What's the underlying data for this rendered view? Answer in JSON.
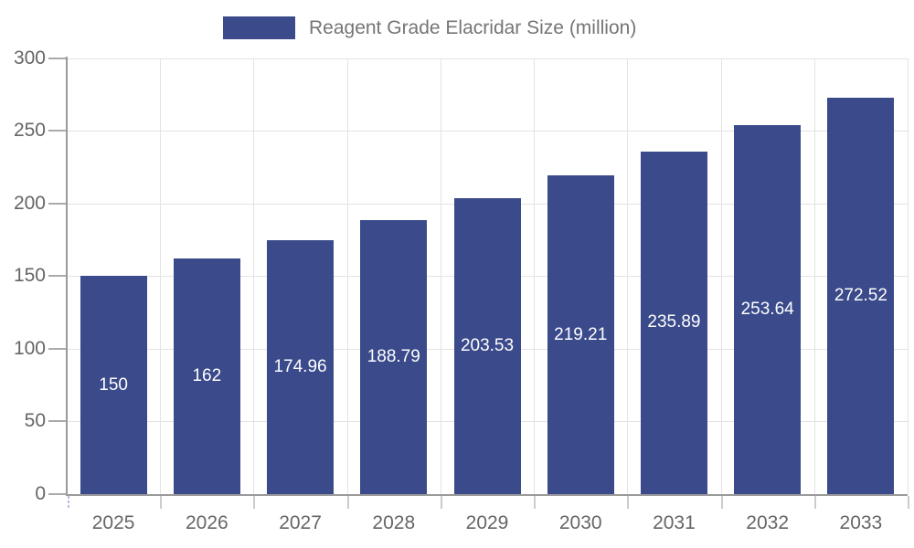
{
  "chart_data": {
    "type": "bar",
    "title": "Reagent Grade Elacridar Size (million)",
    "categories": [
      "2025",
      "2026",
      "2027",
      "2028",
      "2029",
      "2030",
      "2031",
      "2032",
      "2033"
    ],
    "series": [
      {
        "name": "Reagent Grade Elacridar Size (million)",
        "color": "#3A4A8A",
        "values": [
          150,
          162,
          174.96,
          188.79,
          203.53,
          219.21,
          235.89,
          253.64,
          272.52
        ]
      }
    ],
    "xlabel": "",
    "ylabel": "",
    "ylim": [
      0,
      300
    ],
    "yticks": [
      0,
      50,
      100,
      150,
      200,
      250,
      300
    ],
    "grid": true,
    "legend_position": "top-center",
    "value_labels_inside_bars": true
  },
  "style": {
    "background": "#ffffff",
    "bar_color": "#3A4A8A",
    "axis_line_color": "#9a9a9a",
    "grid_line_color": "#e3e3e3",
    "y_tick_color": "#aaaaaa",
    "x_tick_color": "#cccccc",
    "zero_tick_color": "#b3bce0",
    "tick_label_color": "#666666",
    "legend_text_color": "#757575",
    "value_label_color": "#ffffff"
  }
}
